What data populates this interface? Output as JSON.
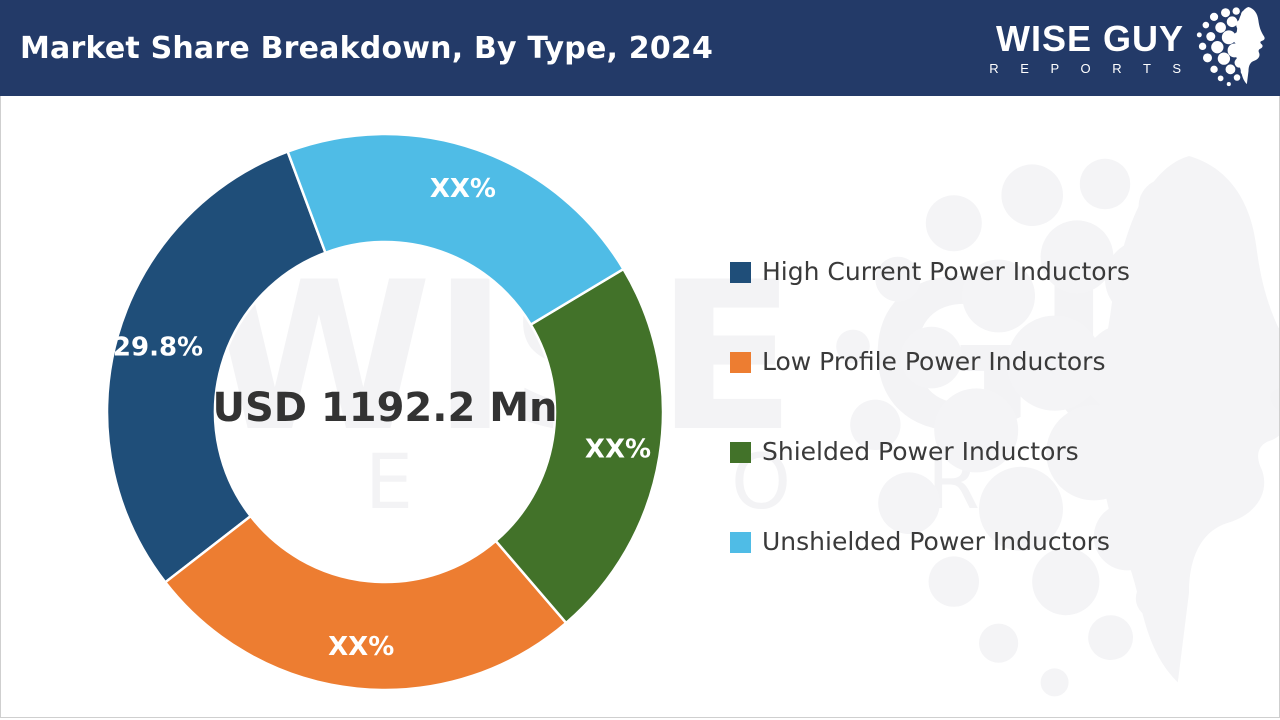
{
  "header": {
    "title": "Market Share Breakdown, By Type, 2024",
    "logo": {
      "wordmark": "WISE GUY",
      "subtext": "R E P O R T S"
    }
  },
  "watermark": {
    "wordmark": "WISE GUY",
    "subtext": "R E P O R T S"
  },
  "colors": {
    "header_bg": "#233A68",
    "title_text": "#FFFFFF",
    "center_text": "#333333",
    "legend_text": "#3A3A3A",
    "slice_separator": "#FFFFFF"
  },
  "chart_data": {
    "type": "donut",
    "title": "Market Share Breakdown, By Type, 2024",
    "center_label": "USD 1192.2 Mn",
    "start_angle_deg": 110.5,
    "direction": "counterclockwise",
    "legend_position": "right",
    "series": [
      {
        "name": "High Current Power Inductors",
        "value": 29.8,
        "slice_label": "29.8%",
        "color": "#1F4E79"
      },
      {
        "name": "Low Profile Power Inductors",
        "value": 25.8,
        "slice_label": "XX%",
        "color": "#ED7D31"
      },
      {
        "name": "Shielded Power Inductors",
        "value": 22.3,
        "slice_label": "XX%",
        "color": "#427229"
      },
      {
        "name": "Unshielded Power Inductors",
        "value": 22.1,
        "slice_label": "XX%",
        "color": "#4FBCE6"
      }
    ]
  }
}
